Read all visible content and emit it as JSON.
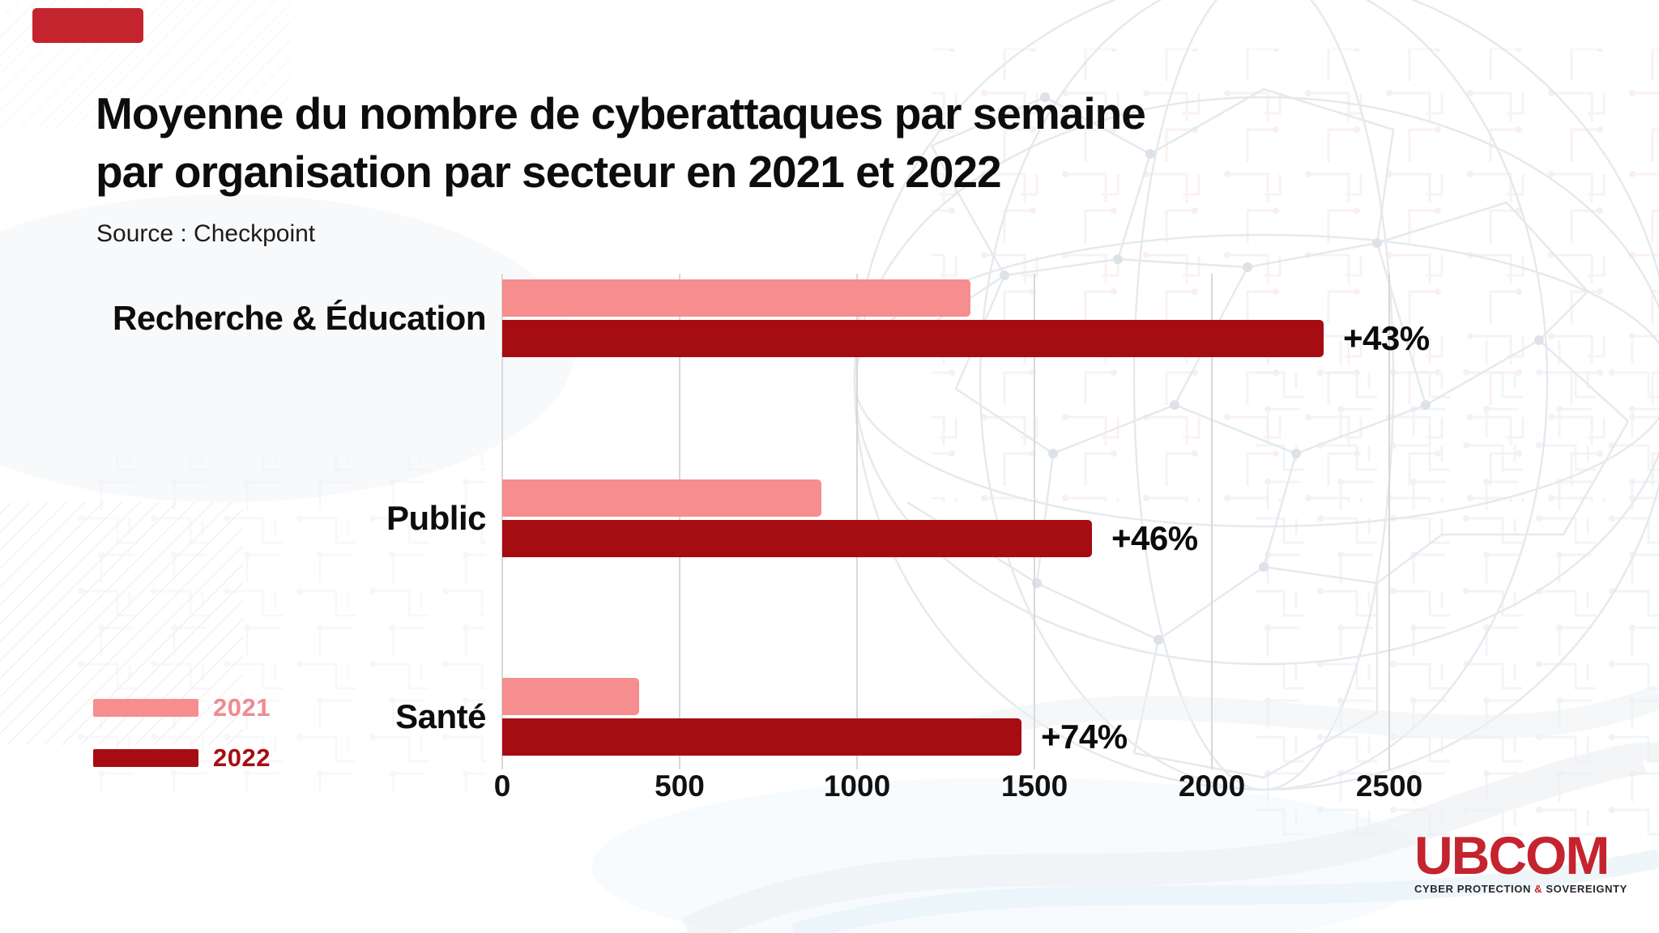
{
  "title": {
    "line1": "Moyenne du nombre de cyberattaques par semaine",
    "line2": "par organisation par secteur en 2021 et 2022"
  },
  "source": "Source : Checkpoint",
  "chart_data": {
    "type": "bar",
    "orientation": "horizontal",
    "categories": [
      "Recherche & Éducation",
      "Public",
      "Santé"
    ],
    "series": [
      {
        "name": "2021",
        "color": "#F68D8E",
        "values": [
          1320,
          900,
          385
        ]
      },
      {
        "name": "2022",
        "color": "#A60D12",
        "values": [
          2314,
          1661,
          1463
        ]
      }
    ],
    "annotations": [
      "+43%",
      "+46%",
      "+74%"
    ],
    "x_ticks": [
      0,
      500,
      1000,
      1500,
      2000,
      2500
    ],
    "xlim": [
      0,
      2500
    ],
    "grid": true,
    "legend_position": "bottom-left"
  },
  "legend": {
    "items": [
      {
        "label": "2021",
        "color": "#F68D8E",
        "text_color": "#EF8A8E"
      },
      {
        "label": "2022",
        "color": "#A60D12",
        "text_color": "#A60D12"
      }
    ]
  },
  "logo": {
    "name": "UBCOM",
    "tagline_part1": "CYBER PROTECTION ",
    "tagline_amp": "&",
    "tagline_part2": " SOVEREIGNTY",
    "red": "#C4242E",
    "tagline_color": "#26262E"
  },
  "colors": {
    "corner_accent": "#C4242E",
    "gridline": "#D6D8DB",
    "text": "#0D0D0D"
  }
}
